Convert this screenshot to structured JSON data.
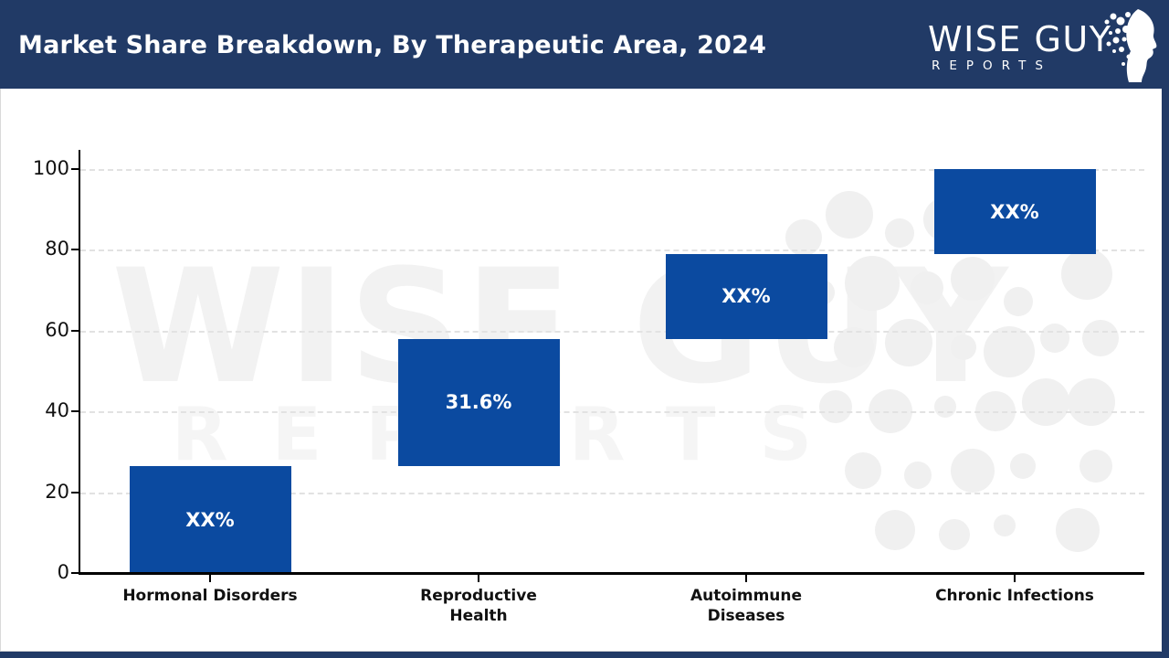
{
  "header": {
    "title": "Market Share Breakdown, By Therapeutic Area, 2024",
    "logo": {
      "primary": "WISE GUY",
      "secondary": "REPORTS"
    }
  },
  "watermark": {
    "line1": "WISE GUY",
    "line2": "REPORTS"
  },
  "chart_data": {
    "type": "bar",
    "variant": "waterfall",
    "title": "Market Share Breakdown, By Therapeutic Area, 2024",
    "xlabel": "",
    "ylabel": "",
    "categories": [
      "Hormonal Disorders",
      "Reproductive\nHealth",
      "Autoimmune\nDiseases",
      "Chronic Infections"
    ],
    "segments": [
      {
        "category": "Hormonal Disorders",
        "start": 0,
        "end": 26.4,
        "value": 26.4,
        "label": "XX%"
      },
      {
        "category": "Reproductive Health",
        "start": 26.4,
        "end": 58.0,
        "value": 31.6,
        "label": "31.6%"
      },
      {
        "category": "Autoimmune Diseases",
        "start": 58.0,
        "end": 78.9,
        "value": 20.9,
        "label": "XX%"
      },
      {
        "category": "Chronic Infections",
        "start": 78.9,
        "end": 100,
        "value": 21.1,
        "label": "XX%"
      }
    ],
    "yticks": [
      0,
      20,
      40,
      60,
      80,
      100
    ],
    "ylim": [
      0,
      105
    ],
    "grid": "horizontal-dashed",
    "legend": "none"
  },
  "colors": {
    "header_bg": "#213a66",
    "bar": "#0b4aa0",
    "grid": "#e2e2e2",
    "axis": "#000000",
    "watermark": "#f2f2f2",
    "bar_label": "#ffffff",
    "tick_label": "#111111"
  }
}
